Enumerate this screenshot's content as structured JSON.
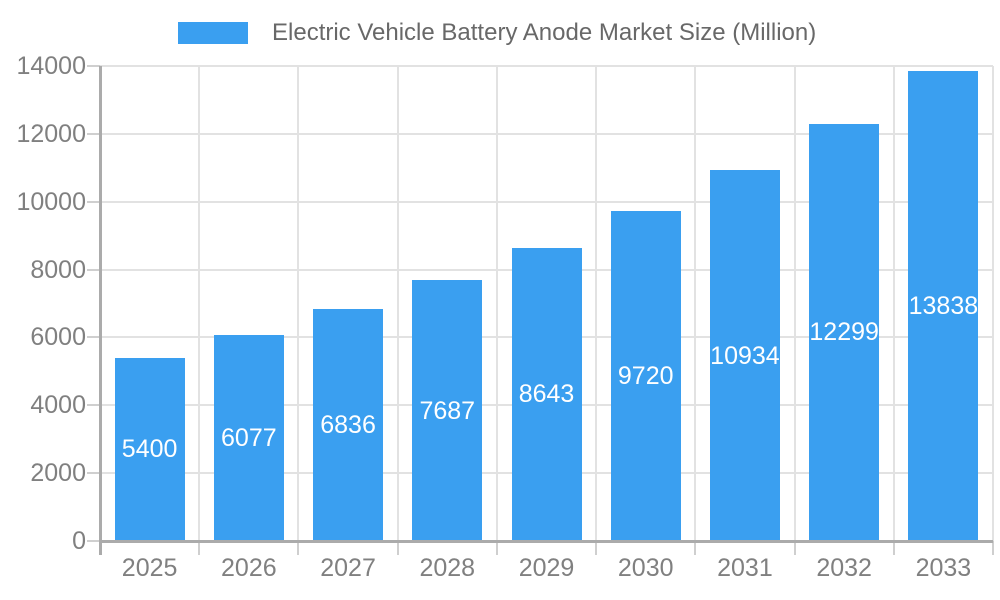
{
  "chart_data": {
    "type": "bar",
    "title": "Electric Vehicle Battery Anode Market Size (Million)",
    "categories": [
      "2025",
      "2026",
      "2027",
      "2028",
      "2029",
      "2030",
      "2031",
      "2032",
      "2033"
    ],
    "values": [
      5400,
      6077,
      6836,
      7687,
      8643,
      9720,
      10934,
      12299,
      13838
    ],
    "xlabel": "",
    "ylabel": "",
    "ylim": [
      0,
      14000
    ],
    "yticks": [
      0,
      2000,
      4000,
      6000,
      8000,
      10000,
      12000,
      14000
    ],
    "grid": true,
    "legend_position": "top-center",
    "bar_label_position": "inside-center",
    "colors": {
      "bar": "#3A9FF0",
      "bar_label": "#ffffff",
      "axis_line": "#ababab",
      "tick": "#cfcfcf",
      "gridline": "#e2e2e2",
      "axis_label": "#808080",
      "legend_text": "#686868",
      "background": "#ffffff"
    }
  }
}
